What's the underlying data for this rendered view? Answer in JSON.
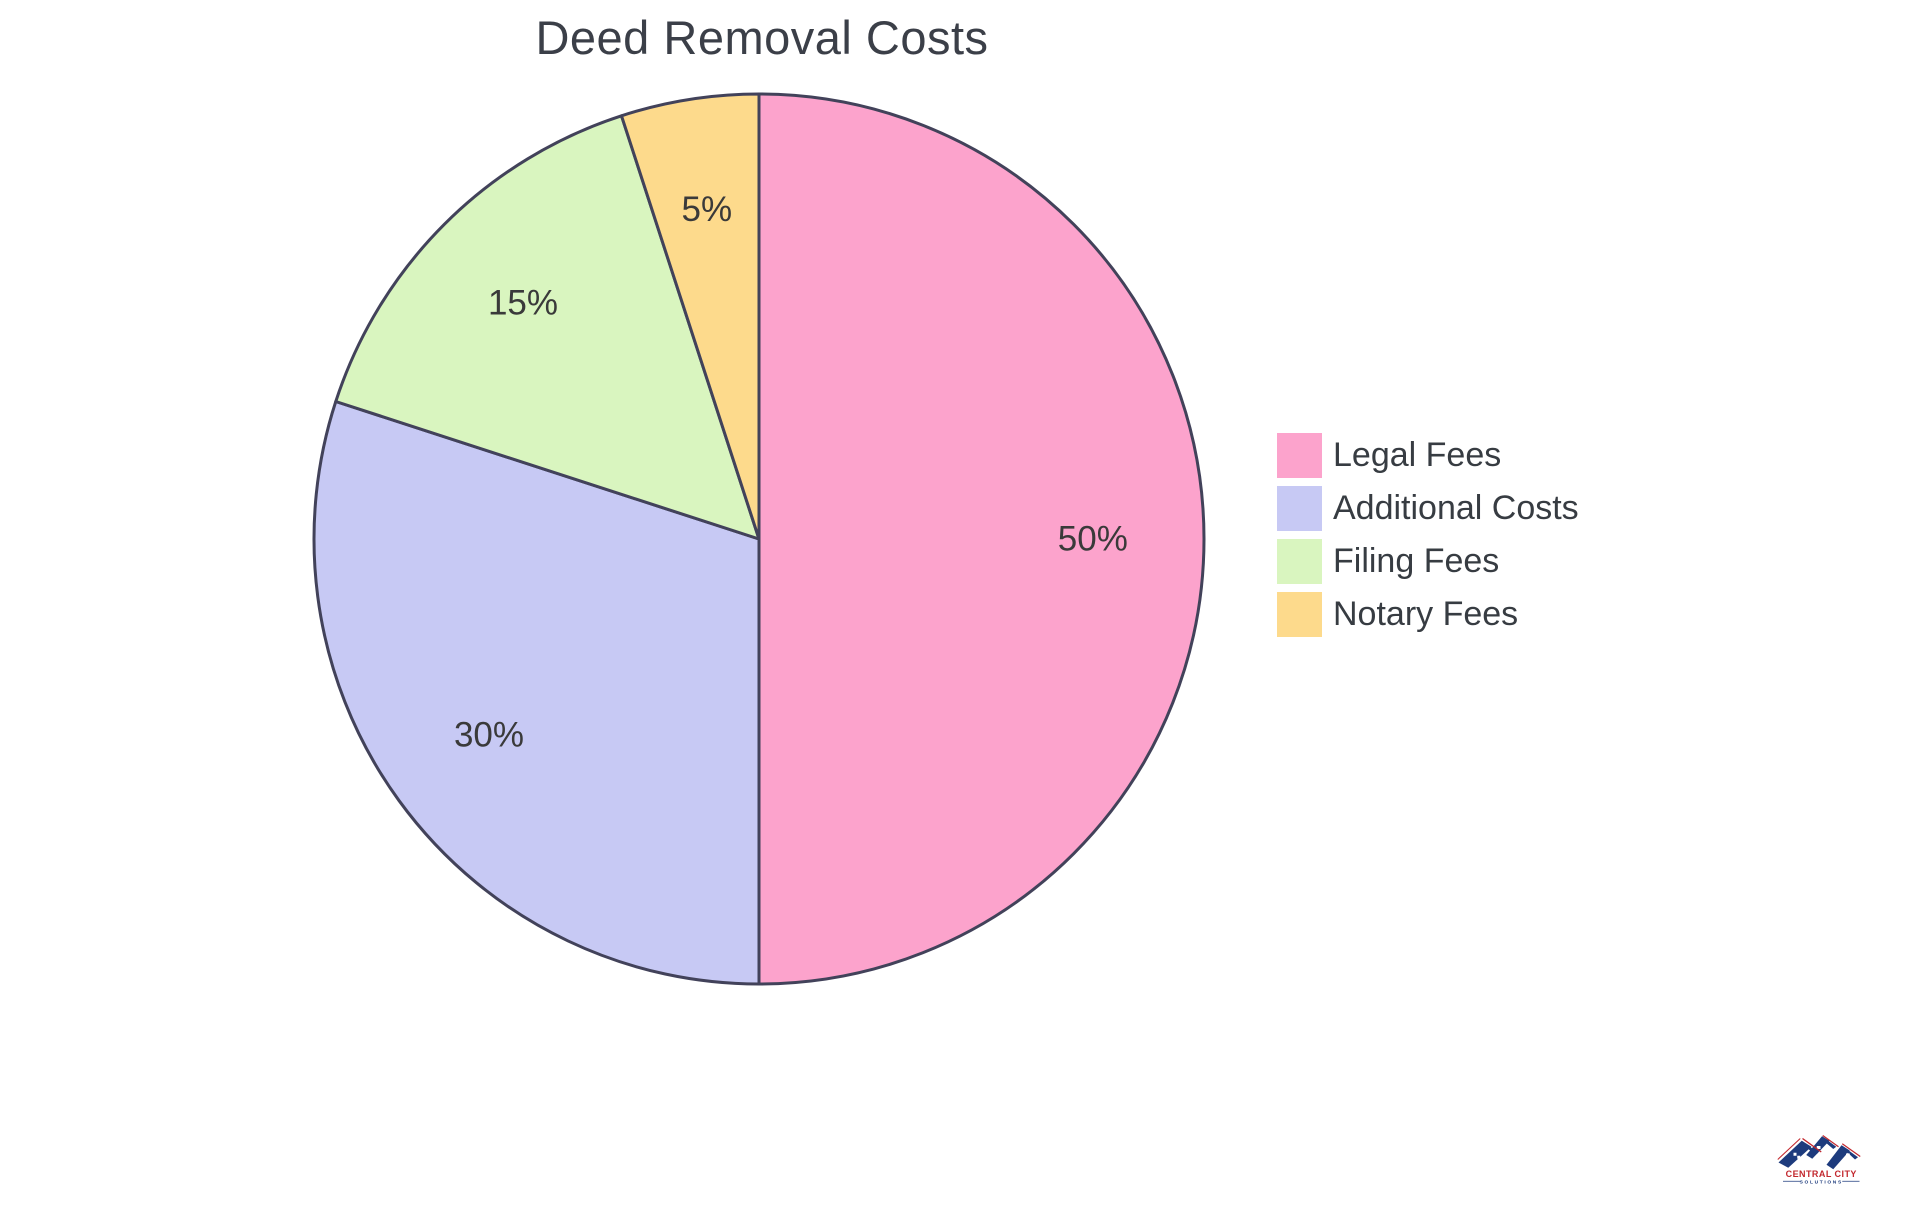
{
  "title": "Deed Removal Costs",
  "chart_data": {
    "type": "pie",
    "title": "Deed Removal Costs",
    "categories": [
      "Legal Fees",
      "Additional Costs",
      "Filing Fees",
      "Notary Fees"
    ],
    "values": [
      50,
      30,
      15,
      5
    ],
    "unit": "%",
    "slice_labels": [
      "50%",
      "30%",
      "15%",
      "5%"
    ],
    "colors": [
      "#FCA3CC",
      "#C7C9F4",
      "#D9F5BF",
      "#FDDA8C"
    ],
    "stroke_color": "#42425A",
    "label_color": "#3a3a3a",
    "start_angle": "12 o'clock",
    "direction": "clockwise",
    "legend_position": "right",
    "legend": [
      "Legal Fees",
      "Additional Costs",
      "Filing Fees",
      "Notary Fees"
    ]
  },
  "watermark_logo": {
    "line1": "CENTRAL CITY",
    "line2": "SOLUTIONS",
    "brand_blue": "#1D3B7D",
    "brand_red": "#C2272D"
  }
}
